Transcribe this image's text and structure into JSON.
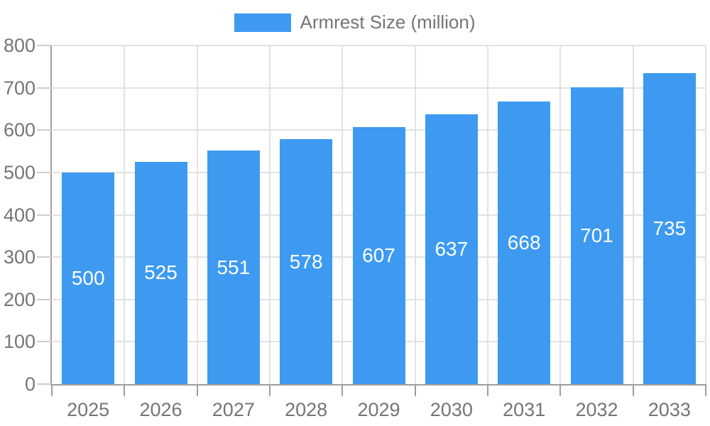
{
  "legend": {
    "label": "Armrest Size (million)"
  },
  "colors": {
    "bar": "#3d9af0",
    "axis_line": "#9e9e9e",
    "gridline": "#e2e2e2",
    "y_tick": "#cccccc",
    "axis_label_text": "#757575",
    "value_label_text": "#ffffff",
    "background": "#ffffff"
  },
  "chart_data": {
    "type": "bar",
    "title": "",
    "categories": [
      "2025",
      "2026",
      "2027",
      "2028",
      "2029",
      "2030",
      "2031",
      "2032",
      "2033"
    ],
    "series": [
      {
        "name": "Armrest Size (million)",
        "values": [
          500,
          525,
          551,
          578,
          607,
          637,
          668,
          701,
          735
        ]
      }
    ],
    "value_labels": [
      500,
      525,
      551,
      578,
      607,
      637,
      668,
      701,
      735
    ],
    "value_label_position": "centered inside bar, white",
    "xlabel": "",
    "ylabel": "",
    "ylim": [
      0,
      800
    ],
    "yticks": [
      0,
      100,
      200,
      300,
      400,
      500,
      600,
      700,
      800
    ],
    "grid": "horizontal and vertical light gray gridlines",
    "legend_position": "top-center"
  }
}
